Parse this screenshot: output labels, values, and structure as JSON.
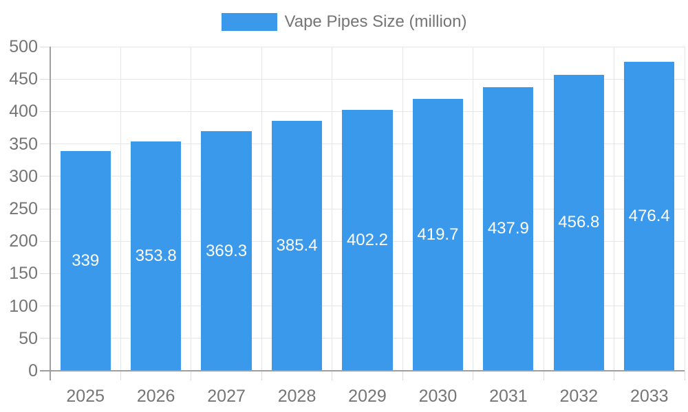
{
  "legend": {
    "label": "Vape Pipes Size (million)"
  },
  "chart_data": {
    "type": "bar",
    "title": "Vape Pipes Size (million)",
    "categories": [
      "2025",
      "2026",
      "2027",
      "2028",
      "2029",
      "2030",
      "2031",
      "2032",
      "2033"
    ],
    "values": [
      339,
      353.8,
      369.3,
      385.4,
      402.2,
      419.7,
      437.9,
      456.8,
      476.4
    ],
    "series_name": "Vape Pipes Size (million)",
    "xlabel": "",
    "ylabel": "",
    "ylim": [
      0,
      500
    ],
    "ytick_step": 50,
    "grid": true,
    "legend_position": "top",
    "bar_label_position": "center",
    "colors": {
      "bar": "#3B99EC",
      "grid": "#E6E6E6",
      "tick": "#DCDCDC",
      "axis": "#9E9E9E",
      "text": "#757575",
      "value_label": "#FFFFFF",
      "background": "#FFFFFF"
    }
  }
}
